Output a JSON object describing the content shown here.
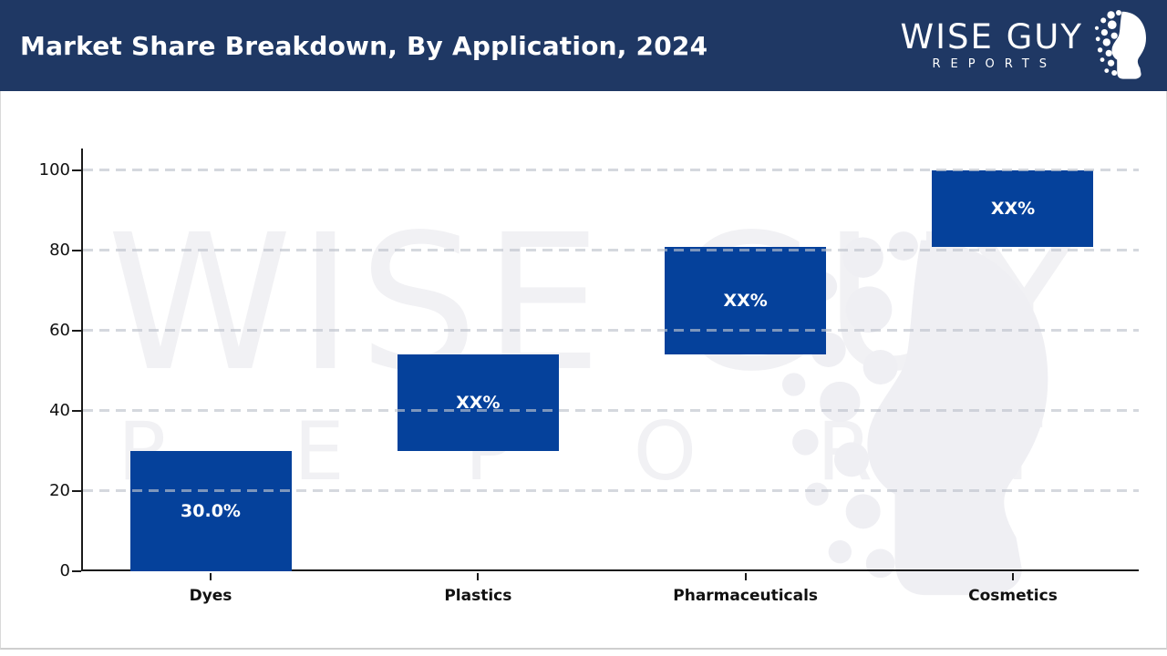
{
  "header": {
    "title": "Market Share Breakdown, By Application, 2024",
    "bg_color": "#1f3864",
    "logo": {
      "line1": "WISE GUY",
      "line2": "REPORTS"
    }
  },
  "watermark": {
    "line1": "WISE GUY",
    "line2": "R E P O R T S"
  },
  "chart_data": {
    "type": "bar",
    "subtype": "waterfall",
    "title": "Market Share Breakdown, By Application, 2024",
    "categories": [
      "Dyes",
      "Plastics",
      "Pharmaceuticals",
      "Cosmetics"
    ],
    "segments": [
      {
        "start": 0,
        "end": 30
      },
      {
        "start": 30,
        "end": 54
      },
      {
        "start": 54,
        "end": 81
      },
      {
        "start": 81,
        "end": 100
      }
    ],
    "increments": [
      30,
      24,
      27,
      19
    ],
    "cumulative": [
      30,
      54,
      81,
      100
    ],
    "bar_labels": [
      "30.0%",
      "XX%",
      "XX%",
      "XX%"
    ],
    "yticks": [
      0,
      20,
      40,
      60,
      80,
      100
    ],
    "ylim": [
      0,
      105.5
    ],
    "xlabel": "",
    "ylabel": "",
    "grid": true,
    "legend": false,
    "bar_color": "#05419b",
    "bar_label_color": "#ffffff",
    "gridline_color": "#dcdfe4",
    "axis_color": "#1a1a1a"
  }
}
